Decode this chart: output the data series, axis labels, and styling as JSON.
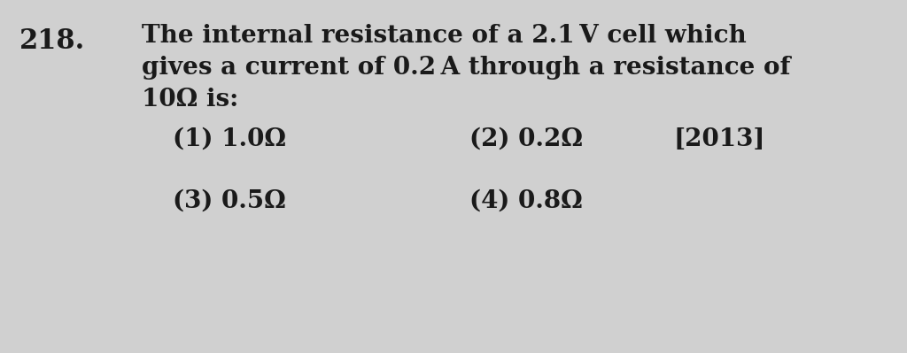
{
  "question_number": "218.",
  "question_line1": "The internal resistance of a 2.1 V cell which",
  "question_line2": "gives a current of 0.2 A through a resistance of",
  "question_line3": "10Ω is:",
  "option1": "(1) 1.0Ω",
  "option2": "(2) 0.2Ω",
  "option3": "(3) 0.5Ω",
  "option4": "(4) 0.8Ω",
  "year_tag": "[2013]",
  "bg_color": "#d0d0d0",
  "text_color": "#1a1a1a",
  "font_size_question": 20,
  "font_size_options": 20,
  "font_size_number": 22,
  "font_family": "DejaVu Serif"
}
